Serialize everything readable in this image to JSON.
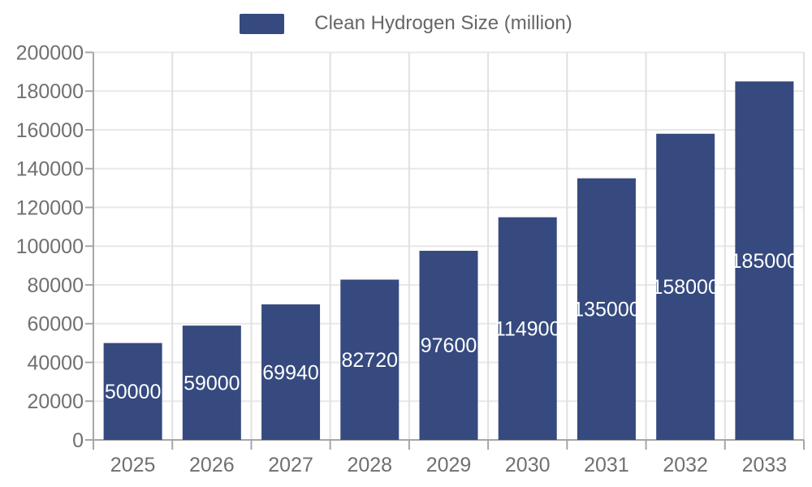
{
  "chart_data": {
    "type": "bar",
    "title": "Clean Hydrogen Size (million)",
    "categories": [
      "2025",
      "2026",
      "2027",
      "2028",
      "2029",
      "2030",
      "2031",
      "2032",
      "2033"
    ],
    "series": [
      {
        "name": "Clean Hydrogen Size (million)",
        "values": [
          50000,
          59000,
          69940,
          82720,
          97600,
          114900,
          135000,
          158000,
          185000
        ]
      }
    ],
    "xlabel": "",
    "ylabel": "",
    "ylim": [
      0,
      200000
    ],
    "ytick_step": 20000,
    "ytick_labels": [
      "0",
      "20000",
      "40000",
      "60000",
      "80000",
      "100000",
      "120000",
      "140000",
      "160000",
      "180000",
      "200000"
    ],
    "grid": true,
    "legend_position": "top",
    "value_labels": {
      "visible": true,
      "position": "inside-center",
      "color": "#ffffff"
    },
    "colors": {
      "bar": "#364a7f",
      "axis_label": "#707070",
      "legend_text": "#666666",
      "grid_horizontal": "#e8e8e8",
      "grid_vertical": "#e0e0e3",
      "axis_line": "#a6a6a6",
      "background": "#ffffff"
    }
  }
}
